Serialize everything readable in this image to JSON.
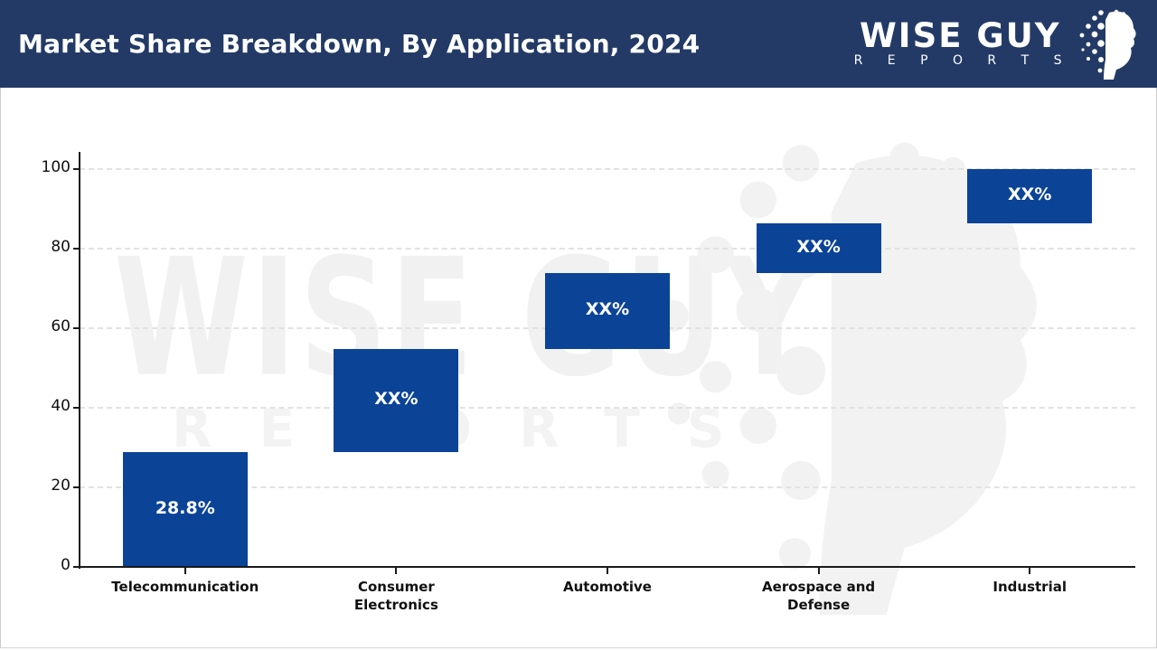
{
  "header": {
    "title": "Market Share Breakdown, By Application, 2024",
    "logo_line1": "WISE GUY",
    "logo_line2": "R E P O R T S"
  },
  "watermark": {
    "line1": "WISE GUY",
    "line2": "REPORTS"
  },
  "colors": {
    "header_bg": "#233a66",
    "bar": "#0b4397",
    "bar_label": "#ffffff",
    "grid": "#e2e2e2",
    "axis": "#1a1a1a",
    "watermark": "#f1f1f1"
  },
  "chart_data": {
    "type": "bar",
    "subtype": "waterfall",
    "title": "Market Share Breakdown, By Application, 2024",
    "categories": [
      "Telecommunication",
      "Consumer\nElectronics",
      "Automotive",
      "Aerospace and\nDefense",
      "Industrial"
    ],
    "bars": [
      {
        "category": "Telecommunication",
        "start": 0,
        "end": 28.8,
        "label": "28.8%"
      },
      {
        "category": "Consumer Electronics",
        "start": 28.8,
        "end": 54.8,
        "label": "XX%"
      },
      {
        "category": "Automotive",
        "start": 54.8,
        "end": 73.7,
        "label": "XX%"
      },
      {
        "category": "Aerospace and Defense",
        "start": 73.7,
        "end": 86.3,
        "label": "XX%"
      },
      {
        "category": "Industrial",
        "start": 86.3,
        "end": 100,
        "label": "XX%"
      }
    ],
    "ylim": [
      0,
      100
    ],
    "yticks": [
      0,
      20,
      40,
      60,
      80,
      100
    ],
    "xlabel": "",
    "ylabel": "",
    "grid": "horizontal-dashed",
    "legend": "none",
    "bar_color": "#0b4397",
    "bar_label_color": "#ffffff"
  }
}
